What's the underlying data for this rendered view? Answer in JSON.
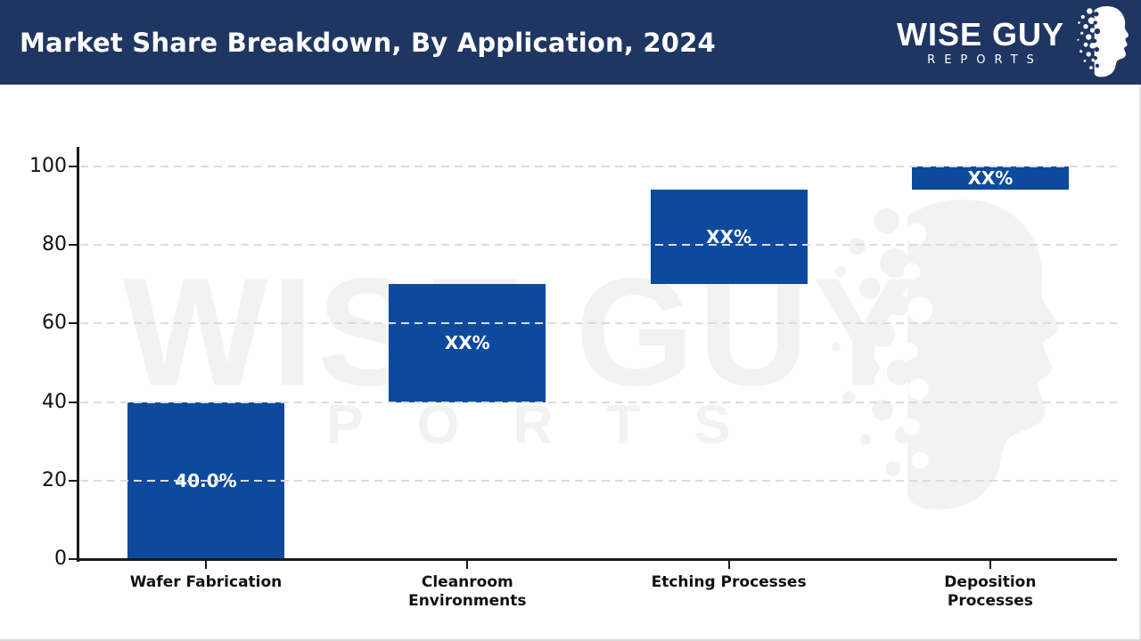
{
  "header": {
    "title": "Market Share Breakdown, By Application, 2024",
    "logo": {
      "line1": "WISE GUY",
      "line2": "REPORTS"
    }
  },
  "watermark": {
    "line1": "WISE GUY",
    "line2": "REPORTS"
  },
  "colors": {
    "header_bg": "#203662",
    "bar": "#0d4a9e",
    "grid": "#dcdcdc",
    "axis": "#1a1a1a",
    "watermark": "#f2f2f2",
    "bar_label": "#ffffff"
  },
  "chart_data": {
    "type": "bar",
    "subtype": "waterfall-stacked",
    "title": "Market Share Breakdown, By Application, 2024",
    "categories": [
      "Wafer Fabrication",
      "Cleanroom Environments",
      "Etching Processes",
      "Deposition Processes"
    ],
    "categories_wrapped": [
      "Wafer Fabrication",
      "Cleanroom\nEnvironments",
      "Etching Processes",
      "Deposition\nProcesses"
    ],
    "values": [
      40,
      30,
      24,
      6
    ],
    "series": [
      {
        "name": "Market share",
        "segments": [
          {
            "category": "Wafer Fabrication",
            "start": 0,
            "end": 40,
            "label": "40.0%"
          },
          {
            "category": "Cleanroom Environments",
            "start": 40,
            "end": 70,
            "label": "XX%"
          },
          {
            "category": "Etching Processes",
            "start": 70,
            "end": 94,
            "label": "XX%"
          },
          {
            "category": "Deposition Processes",
            "start": 94,
            "end": 100,
            "label": "XX%"
          }
        ]
      }
    ],
    "xlabel": "",
    "ylabel": "",
    "ylim": [
      0,
      100
    ],
    "yticks": [
      0,
      20,
      40,
      60,
      80,
      100
    ],
    "grid": "horizontal dashed, drawn over bars",
    "legend": "none"
  }
}
